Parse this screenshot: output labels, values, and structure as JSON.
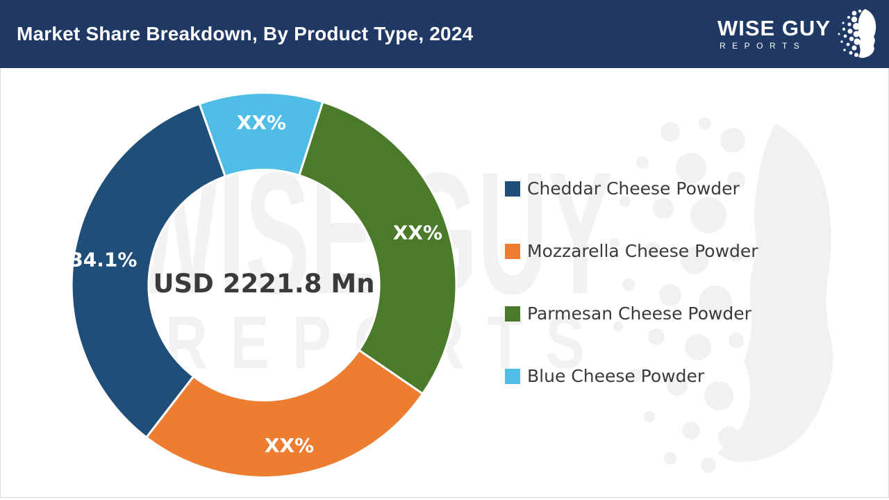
{
  "header": {
    "title": "Market Share Breakdown, By Product Type, 2024",
    "logo": {
      "line1": "WISE GUY",
      "line2": "REPORTS"
    }
  },
  "watermark": {
    "line1": "WISE GUY",
    "line2": "REPORTS"
  },
  "colors": {
    "header_bg": "#1F3864",
    "text_dark": "#3A3A3A",
    "frame_border": "#D9D9D9",
    "watermark_gray": "#F2F2F2"
  },
  "chart_data": {
    "type": "pie",
    "subtype": "donut",
    "title": "Market Share Breakdown, By Product Type, 2024",
    "center_label": "USD 2221.8 Mn",
    "start_angle_deg": -19.6,
    "clockwise": true,
    "legend_position": "right",
    "slices": [
      {
        "name": "Blue Cheese Powder",
        "share_pct": 10.4,
        "label": "XX%",
        "color": "#4FBDE6"
      },
      {
        "name": "Parmesan Cheese Powder",
        "share_pct": 29.6,
        "label": "XX%",
        "color": "#4C7A2B"
      },
      {
        "name": "Mozzarella Cheese Powder",
        "share_pct": 25.9,
        "label": "XX%",
        "color": "#ED7D31"
      },
      {
        "name": "Cheddar Cheese Powder",
        "share_pct": 34.1,
        "label": "34.1%",
        "color": "#1F4E79"
      }
    ]
  },
  "legend": {
    "items": [
      {
        "label": "Cheddar Cheese Powder",
        "color": "#1F4E79"
      },
      {
        "label": "Mozzarella Cheese Powder",
        "color": "#ED7D31"
      },
      {
        "label": "Parmesan Cheese Powder",
        "color": "#4C7A2B"
      },
      {
        "label": "Blue Cheese Powder",
        "color": "#4FBDE6"
      }
    ]
  }
}
